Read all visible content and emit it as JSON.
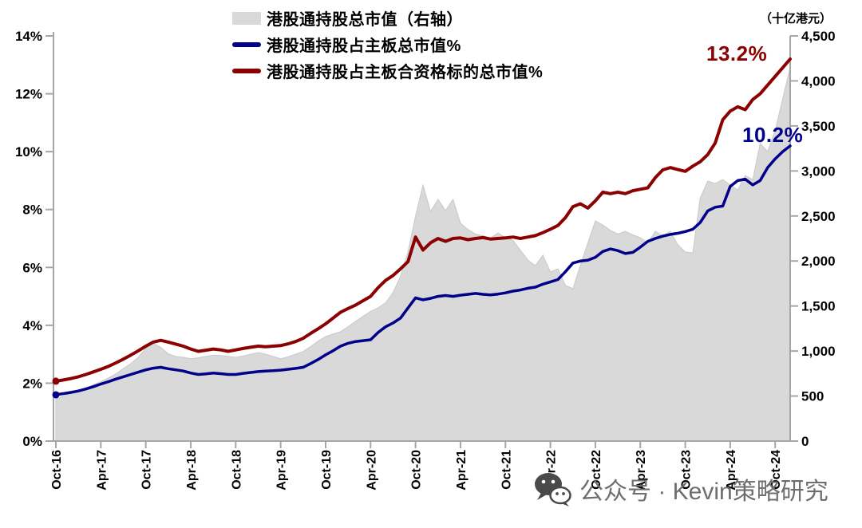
{
  "watermark": {
    "text": "公众号 · Kevin策略研究"
  },
  "colors": {
    "area_fill": "#D9D9D9",
    "blue_line": "#00008B",
    "red_line": "#8B0000",
    "axis": "#A6A6A6",
    "watermark_gray": "#6E6E6E"
  },
  "chart_data": {
    "type": "area",
    "title": "",
    "legend_position": "top",
    "grid": false,
    "x_tick_labels": [
      "Oct-16",
      "Apr-17",
      "Oct-17",
      "Apr-18",
      "Oct-18",
      "Apr-19",
      "Oct-19",
      "Apr-20",
      "Oct-20",
      "Apr-21",
      "Oct-21",
      "Apr-22",
      "Oct-22",
      "Apr-23",
      "Oct-23",
      "Apr-24",
      "Oct-24"
    ],
    "left_axis": {
      "unit": "%",
      "min": 0,
      "max": 14,
      "ticks": [
        "0%",
        "2%",
        "4%",
        "6%",
        "8%",
        "10%",
        "12%",
        "14%"
      ]
    },
    "right_axis": {
      "unit": "（十亿港元）",
      "min": 0,
      "max": 4500,
      "ticks": [
        "0",
        "500",
        "1,000",
        "1,500",
        "2,000",
        "2,500",
        "3,000",
        "3,500",
        "4,000",
        "4,500"
      ]
    },
    "series": [
      {
        "name": "港股通持股总市值（右轴）",
        "type": "area",
        "axis": "right",
        "color": "#D9D9D9",
        "values": [
          470,
          500,
          530,
          560,
          590,
          625,
          660,
          700,
          745,
          806,
          860,
          930,
          1030,
          1085,
          1040,
          970,
          940,
          930,
          915,
          925,
          940,
          955,
          950,
          940,
          930,
          945,
          965,
          983,
          965,
          940,
          915,
          935,
          965,
          995,
          1050,
          1110,
          1160,
          1190,
          1215,
          1270,
          1330,
          1385,
          1440,
          1480,
          1535,
          1650,
          1830,
          2100,
          2500,
          2843,
          2550,
          2684,
          2560,
          2684,
          2420,
          2350,
          2300,
          2280,
          2255,
          2310,
          2260,
          2230,
          2120,
          2010,
          1950,
          2064,
          1880,
          1913,
          1730,
          1692,
          1950,
          2200,
          2445,
          2400,
          2340,
          2300,
          2330,
          2290,
          2260,
          2200,
          2330,
          2280,
          2330,
          2180,
          2100,
          2090,
          2700,
          2888,
          2860,
          2905,
          2843,
          2790,
          2950,
          2905,
          3304,
          3216,
          3450,
          3800,
          4150
        ]
      },
      {
        "name": "港股通持股占主板总市值%",
        "type": "line",
        "axis": "left",
        "color": "#00008B",
        "values": [
          1.6,
          1.64,
          1.68,
          1.73,
          1.8,
          1.88,
          1.97,
          2.05,
          2.14,
          2.22,
          2.3,
          2.38,
          2.46,
          2.52,
          2.55,
          2.5,
          2.46,
          2.42,
          2.35,
          2.3,
          2.32,
          2.35,
          2.33,
          2.3,
          2.3,
          2.34,
          2.37,
          2.4,
          2.42,
          2.43,
          2.45,
          2.48,
          2.51,
          2.55,
          2.68,
          2.82,
          2.98,
          3.12,
          3.28,
          3.38,
          3.44,
          3.47,
          3.5,
          3.75,
          3.95,
          4.08,
          4.25,
          4.6,
          4.95,
          4.88,
          4.93,
          5.0,
          5.03,
          5.0,
          5.04,
          5.07,
          5.1,
          5.07,
          5.05,
          5.08,
          5.12,
          5.18,
          5.22,
          5.28,
          5.32,
          5.42,
          5.5,
          5.58,
          5.85,
          6.15,
          6.22,
          6.25,
          6.35,
          6.55,
          6.64,
          6.58,
          6.48,
          6.52,
          6.7,
          6.9,
          7.0,
          7.08,
          7.14,
          7.18,
          7.24,
          7.32,
          7.55,
          7.95,
          8.08,
          8.12,
          8.8,
          9.0,
          9.05,
          8.85,
          9.0,
          9.45,
          9.75,
          10.0,
          10.2
        ]
      },
      {
        "name": "港股通持股占主板合资格标的总市值%",
        "type": "line",
        "axis": "left",
        "color": "#8B0000",
        "values": [
          2.07,
          2.11,
          2.16,
          2.22,
          2.3,
          2.39,
          2.48,
          2.58,
          2.7,
          2.83,
          2.97,
          3.12,
          3.28,
          3.42,
          3.48,
          3.42,
          3.35,
          3.28,
          3.18,
          3.1,
          3.14,
          3.18,
          3.15,
          3.1,
          3.15,
          3.2,
          3.24,
          3.28,
          3.26,
          3.28,
          3.3,
          3.36,
          3.44,
          3.55,
          3.72,
          3.88,
          4.05,
          4.25,
          4.45,
          4.58,
          4.7,
          4.85,
          5.0,
          5.3,
          5.55,
          5.72,
          5.95,
          6.2,
          7.05,
          6.6,
          6.85,
          7.0,
          6.9,
          7.0,
          7.02,
          6.96,
          7.0,
          7.03,
          6.98,
          7.0,
          7.02,
          7.05,
          7.0,
          7.05,
          7.1,
          7.2,
          7.32,
          7.45,
          7.72,
          8.1,
          8.2,
          8.05,
          8.3,
          8.6,
          8.55,
          8.6,
          8.55,
          8.65,
          8.7,
          8.75,
          9.1,
          9.37,
          9.45,
          9.38,
          9.32,
          9.5,
          9.65,
          9.9,
          10.3,
          11.1,
          11.4,
          11.55,
          11.45,
          11.8,
          12.0,
          12.3,
          12.6,
          12.9,
          13.2
        ]
      }
    ],
    "annotations": [
      {
        "text": "13.2%",
        "color": "#8B0000",
        "series": "港股通持股占主板合资格标的总市值%"
      },
      {
        "text": "10.2%",
        "color": "#00008B",
        "series": "港股通持股占主板总市值%"
      }
    ]
  }
}
